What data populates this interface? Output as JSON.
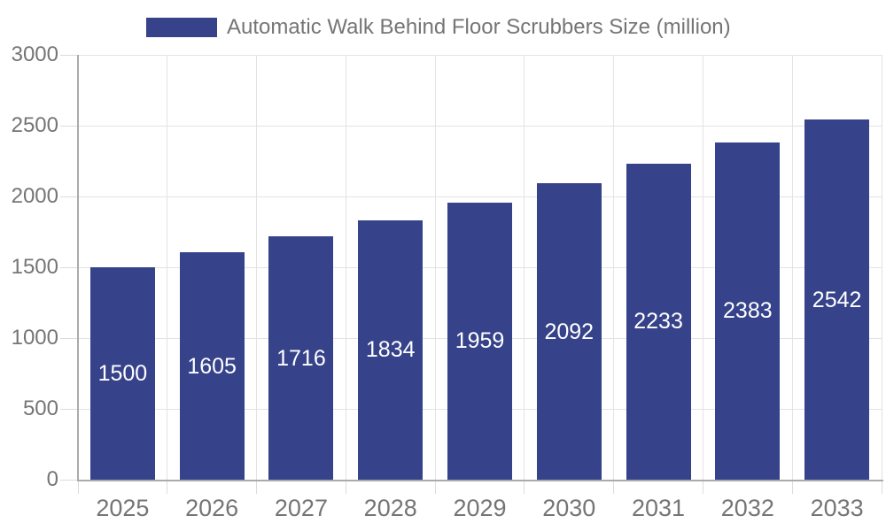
{
  "chart_data": {
    "type": "bar",
    "title": "Automatic Walk Behind Floor Scrubbers Size (million)",
    "legend": {
      "position": "top",
      "entries": [
        "Automatic Walk Behind Floor Scrubbers Size (million)"
      ]
    },
    "categories": [
      "2025",
      "2026",
      "2027",
      "2028",
      "2029",
      "2030",
      "2031",
      "2032",
      "2033"
    ],
    "series": [
      {
        "name": "Automatic Walk Behind Floor Scrubbers Size (million)",
        "values": [
          1500,
          1605,
          1716,
          1834,
          1959,
          2092,
          2233,
          2383,
          2542
        ]
      }
    ],
    "xlabel": "",
    "ylabel": "",
    "ylim": [
      0,
      3000
    ],
    "yticks": [
      0,
      500,
      1000,
      1500,
      2000,
      2500,
      3000
    ],
    "grid": true,
    "bar_color": "#36428A",
    "bar_value_label_color": "#ffffff",
    "axis_text_color": "#757575"
  }
}
